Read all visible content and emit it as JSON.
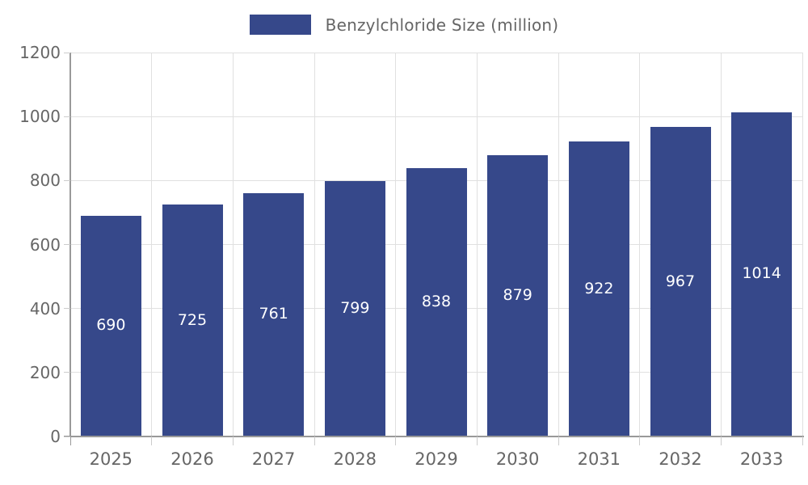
{
  "legend": {
    "label": "Benzylchloride Size (million)"
  },
  "chart_data": {
    "type": "bar",
    "title": "",
    "categories": [
      "2025",
      "2026",
      "2027",
      "2028",
      "2029",
      "2030",
      "2031",
      "2032",
      "2033"
    ],
    "series": [
      {
        "name": "Benzylchloride Size (million)",
        "values": [
          690,
          725,
          761,
          799,
          838,
          879,
          922,
          967,
          1014
        ]
      }
    ],
    "xlabel": "",
    "ylabel": "",
    "ylim": [
      0,
      1200
    ],
    "yticks": [
      0,
      200,
      400,
      600,
      800,
      1000,
      1200
    ],
    "grid": true,
    "legend_position": "top",
    "bar_value_labels_shown": true,
    "colors": {
      "bar": "#36488A",
      "bar_value_label": "#ffffff",
      "grid": "#e0e0e0",
      "axis": "#999999",
      "tick": "#cccccc",
      "tick_label": "#666666",
      "background": "#ffffff"
    }
  }
}
